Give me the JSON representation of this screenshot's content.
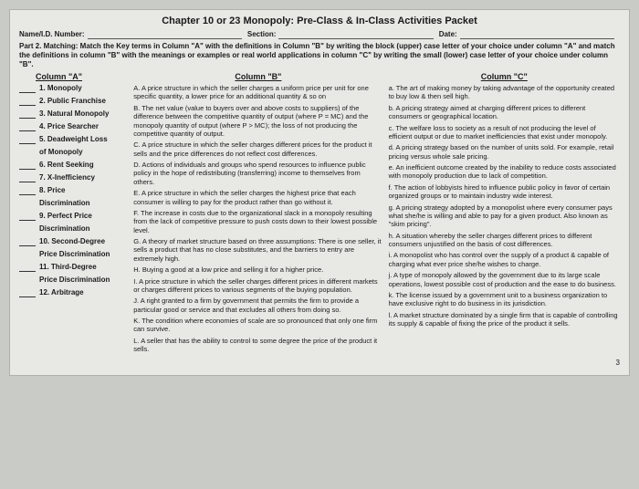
{
  "title": "Chapter 10 or 23  Monopoly: Pre-Class & In-Class Activities Packet",
  "header": {
    "name_label": "Name/I.D. Number:",
    "section_label": "Section:",
    "date_label": "Date:"
  },
  "instructions": "Part 2. Matching: Match the Key terms in Column \"A\" with the definitions in Column \"B\" by writing the block (upper) case letter of your choice under column \"A\" and match the definitions in column \"B\" with the meanings or examples or real world applications in column \"C\" by writing the small (lower) case letter of your choice under column \"B\".",
  "colA_head": "Column  \"A\"",
  "colB_head": "Column  \"B\"",
  "colC_head": "Column  \"C\"",
  "terms": [
    "1. Monopoly",
    "2. Public Franchise",
    "3. Natural Monopoly",
    "4. Price Searcher",
    "5. Deadweight Loss",
    "   of Monopoly",
    "6. Rent Seeking",
    "7. X-Inefficiency",
    "8. Price",
    "   Discrimination",
    "9. Perfect Price",
    "   Discrimination",
    "10. Second-Degree",
    "   Price Discrimination",
    "11. Third-Degree",
    "   Price Discrimination",
    "12. Arbitrage"
  ],
  "term_has_blank": [
    true,
    true,
    true,
    true,
    true,
    false,
    true,
    true,
    true,
    false,
    true,
    false,
    true,
    false,
    true,
    false,
    true
  ],
  "defsB": [
    {
      "k": "A.",
      "t": " A price structure in which the seller charges a uniform price per unit for one specific quantity, a lower price for an additional quantity & so on"
    },
    {
      "k": "B.",
      "t": " The net value (value to buyers over and above costs to suppliers) of the difference between the competitive quantity of output (where P = MC) and the monopoly quantity of output (where P > MC); the loss of not producing the competitive quantity of output."
    },
    {
      "k": "C.",
      "t": " A price structure in which the seller charges different prices for the product it sells and the price differences do not reflect cost differences."
    },
    {
      "k": "D.",
      "t": " Actions of individuals and groups who spend resources to influence public policy in the hope of redistributing (transferring) income to themselves from others."
    },
    {
      "k": "E.",
      "t": " A price structure in which the seller charges the highest price that each consumer is willing to pay for the product rather than go without it."
    },
    {
      "k": "F.",
      "t": " The increase in costs due to the organizational slack in a monopoly resulting from the lack of competitive pressure to push costs down to their lowest possible level."
    },
    {
      "k": "G.",
      "t": " A theory of market structure based on three assumptions: There is one seller, it sells a product that has no close substitutes, and the barriers to entry are extremely high."
    },
    {
      "k": "H.",
      "t": " Buying a good at a low price and selling it for a higher price."
    },
    {
      "k": "I.",
      "t": " A price structure in which the seller charges different prices in different markets or charges different prices to various segments of the buying population."
    },
    {
      "k": "J.",
      "t": " A right granted to a firm by government that permits the firm to provide a particular good or service and that excludes all others from doing so."
    },
    {
      "k": "K.",
      "t": " The condition where economies of scale are so pronounced that only one firm can survive."
    },
    {
      "k": "L.",
      "t": " A seller that has the ability to control to some degree the price of the product it sells."
    }
  ],
  "defsC": [
    {
      "k": "a.",
      "t": " The art of making money by taking advantage of the opportunity created to buy low & then sell high."
    },
    {
      "k": "b.",
      "t": " A pricing strategy aimed at charging different prices to different consumers or geographical location."
    },
    {
      "k": "c.",
      "t": " The welfare loss to society as a result of not producing the level of efficient output or due to market inefficiencies that exist under monopoly."
    },
    {
      "k": "d.",
      "t": " A pricing strategy based on the number of units sold. For example, retail pricing versus whole sale pricing."
    },
    {
      "k": "e.",
      "t": " An inefficient outcome created by the inability to reduce costs associated with monopoly production due to lack of competition."
    },
    {
      "k": "f.",
      "t": " The action of lobbyists hired to influence public policy in favor of certain organized groups or to maintain industry wide interest."
    },
    {
      "k": "g.",
      "t": " A pricing strategy adopted by a monopolist where every consumer pays what she/he is willing and able to pay for a given product. Also known as \"skim pricing\"."
    },
    {
      "k": "h.",
      "t": " A situation whereby the seller charges different prices to different consumers unjustified on the basis of cost differences."
    },
    {
      "k": "i.",
      "t": " A monopolist who has control over the supply of a product & capable of charging what ever price she/he wishes to charge."
    },
    {
      "k": "j.",
      "t": " A type of monopoly allowed by the government due to its large scale operations, lowest possible cost of production and the ease to do business."
    },
    {
      "k": "k.",
      "t": " The license issued by a government unit to a business organization to have exclusive right to do business in its jurisdiction."
    },
    {
      "k": "l.",
      "t": " A market structure dominated by a single firm that is capable of controlling its supply & capable of fixing the price of the product it sells."
    }
  ],
  "page_num": "3"
}
